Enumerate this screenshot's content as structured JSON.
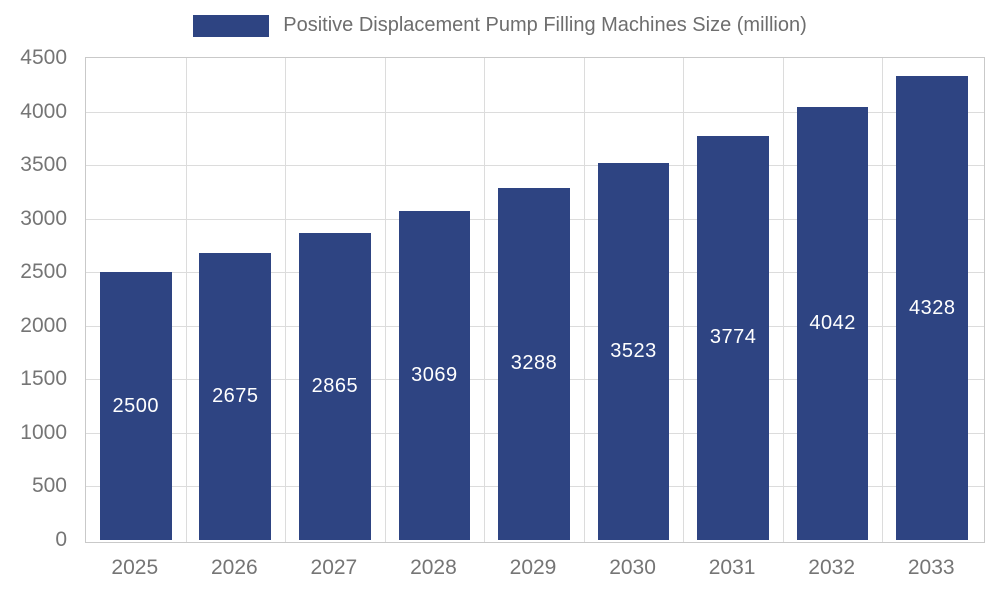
{
  "legend": {
    "label": "Positive Displacement Pump Filling Machines Size (million)"
  },
  "chart_data": {
    "type": "bar",
    "title": "Positive Displacement Pump Filling Machines Size (million)",
    "categories": [
      "2025",
      "2026",
      "2027",
      "2028",
      "2029",
      "2030",
      "2031",
      "2032",
      "2033"
    ],
    "values": [
      2500,
      2675,
      2865,
      3069,
      3288,
      3523,
      3774,
      4042,
      4328
    ],
    "xlabel": "",
    "ylabel": "",
    "ylim": [
      0,
      4500
    ],
    "y_ticks": [
      0,
      500,
      1000,
      1500,
      2000,
      2500,
      3000,
      3500,
      4000,
      4500
    ],
    "grid": true,
    "legend_position": "top-center",
    "bar_band_fraction": 0.72,
    "colors": {
      "bar": "#2e4482",
      "value_label": "#ffffff",
      "axis_text": "#757575",
      "legend_text": "#6e6e6e",
      "gridline": "#dcdcdc",
      "plot_border": "#c9c9c9",
      "background": "#ffffff"
    }
  }
}
